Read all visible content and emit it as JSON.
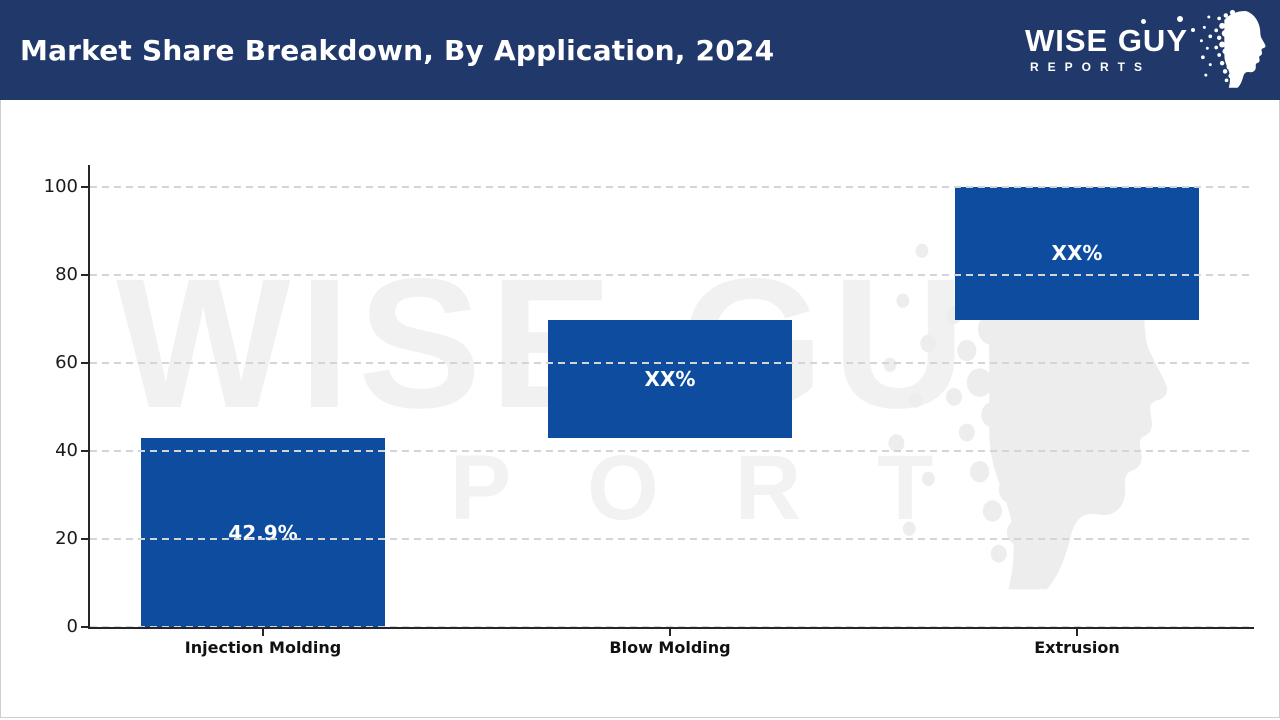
{
  "header": {
    "title": "Market Share Breakdown, By Application, 2024",
    "bg_color": "#20386a",
    "logo": {
      "line1": "WISE GUY",
      "line2": "REPORTS"
    }
  },
  "watermark": {
    "line1": "WISE GUY",
    "line2": "REPORTS"
  },
  "chart_data": {
    "type": "bar",
    "subtype": "stepped-waterfall",
    "title": "Market Share Breakdown, By Application, 2024",
    "categories": [
      "Injection Molding",
      "Blow Molding",
      "Extrusion"
    ],
    "segments": [
      {
        "category": "Injection Molding",
        "start": 0,
        "end": 42.9,
        "label": "42.9%"
      },
      {
        "category": "Blow Molding",
        "start": 42.9,
        "end": 69.8,
        "label": "XX%"
      },
      {
        "category": "Extrusion",
        "start": 69.8,
        "end": 100,
        "label": "XX%"
      }
    ],
    "yticks": [
      0,
      20,
      40,
      60,
      80,
      100
    ],
    "ylim": [
      0,
      105
    ],
    "xlabel": "",
    "ylabel": "",
    "legend": "none",
    "grid": {
      "axis": "y",
      "style": "dashed",
      "color": "#d5d5d5"
    },
    "bar_color": "#0d4c9f",
    "bar_label_color": "#ffffff",
    "axis_color": "#262626"
  }
}
